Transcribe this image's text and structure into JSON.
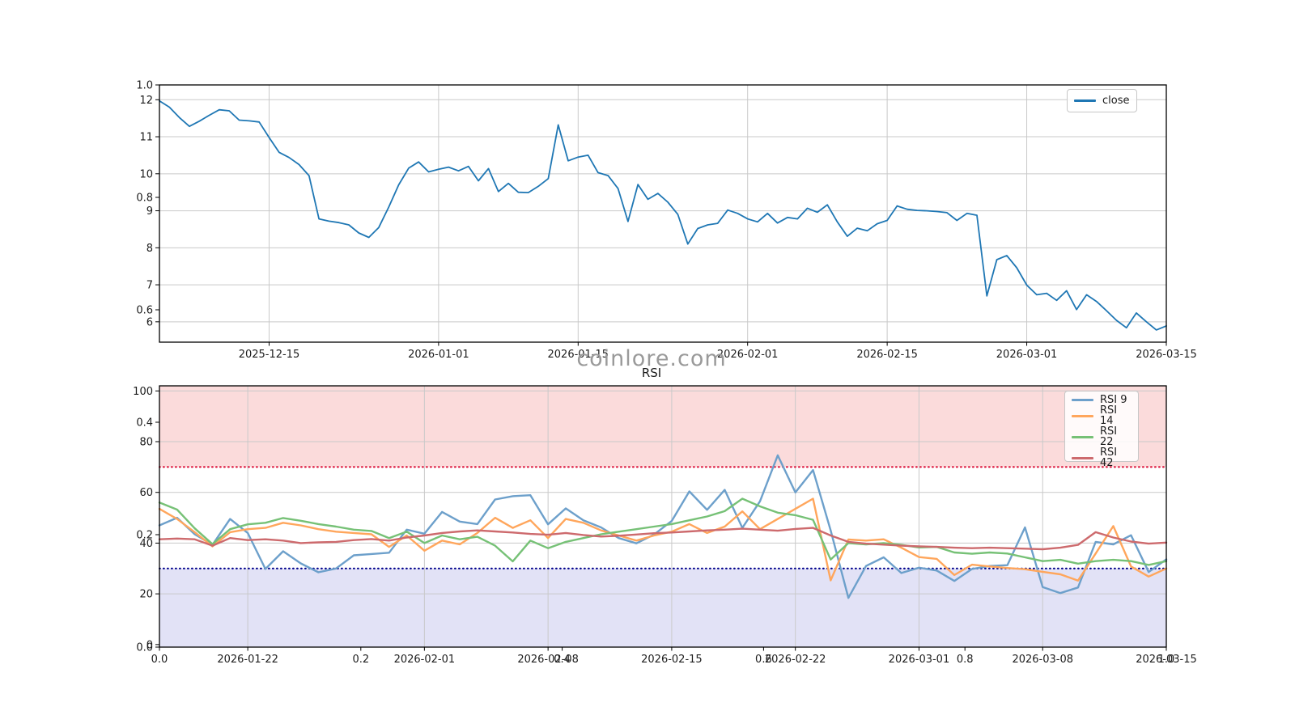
{
  "watermark": "coinlore.com",
  "overlay_ticks": {
    "x": [
      "0.0",
      "0.2",
      "0.4",
      "0.6",
      "0.8",
      "1.0"
    ],
    "y": [
      "1.0",
      "0.8",
      "0.6",
      "0.4",
      "0.2",
      "0.0"
    ]
  },
  "chart_data": [
    {
      "type": "line",
      "title": "",
      "legend": [
        "close"
      ],
      "color": "#1f77b4",
      "x_start": "2025-12-04",
      "x_end": "2026-03-15",
      "ylim": [
        5.45,
        12.4
      ],
      "grid": true,
      "legend_position": "upper right",
      "yticks": [
        "12",
        "11",
        "10",
        "9",
        "8",
        "7",
        "6"
      ],
      "xticks": [
        {
          "label": "2025-12-15",
          "index": 11
        },
        {
          "label": "2026-01-01",
          "index": 28
        },
        {
          "label": "2026-01-15",
          "index": 42
        },
        {
          "label": "2026-02-01",
          "index": 59
        },
        {
          "label": "2026-02-15",
          "index": 73
        },
        {
          "label": "2026-03-01",
          "index": 87
        },
        {
          "label": "2026-03-15",
          "index": 101
        }
      ],
      "values": [
        11.97,
        11.8,
        11.52,
        11.28,
        11.42,
        11.58,
        11.73,
        11.7,
        11.45,
        11.43,
        11.4,
        10.98,
        10.58,
        10.44,
        10.25,
        9.95,
        8.78,
        8.72,
        8.68,
        8.62,
        8.4,
        8.28,
        8.55,
        9.1,
        9.7,
        10.15,
        10.32,
        10.05,
        10.12,
        10.18,
        10.08,
        10.2,
        9.81,
        10.14,
        9.52,
        9.74,
        9.5,
        9.49,
        9.66,
        9.87,
        11.32,
        10.35,
        10.45,
        10.5,
        10.03,
        9.95,
        9.6,
        8.71,
        9.71,
        9.31,
        9.47,
        9.23,
        8.9,
        8.1,
        8.52,
        8.62,
        8.66,
        9.02,
        8.93,
        8.78,
        8.7,
        8.93,
        8.67,
        8.82,
        8.78,
        9.07,
        8.96,
        9.16,
        8.7,
        8.31,
        8.53,
        8.46,
        8.65,
        8.74,
        9.13,
        9.04,
        9.01,
        9.0,
        8.98,
        8.95,
        8.74,
        8.93,
        8.88,
        6.7,
        7.68,
        7.79,
        7.46,
        6.99,
        6.73,
        6.77,
        6.58,
        6.84,
        6.33,
        6.73,
        6.55,
        6.3,
        6.04,
        5.84,
        6.24,
        6.0,
        5.78,
        5.89
      ]
    },
    {
      "type": "line",
      "title": "RSI",
      "legend": [
        "RSI 9",
        "RSI 14",
        "RSI 22",
        "RSI 42"
      ],
      "x_start": "2026-01-17",
      "x_end": "2026-03-15",
      "ylim": [
        0,
        100
      ],
      "grid": true,
      "legend_position": "upper right",
      "yticks": [
        "100",
        "80",
        "60",
        "40",
        "20",
        "0"
      ],
      "xticks": [
        {
          "label": "2026-01-22",
          "index": 5
        },
        {
          "label": "2026-02-01",
          "index": 15
        },
        {
          "label": "2026-02-08",
          "index": 22
        },
        {
          "label": "2026-02-15",
          "index": 29
        },
        {
          "label": "2026-02-22",
          "index": 36
        },
        {
          "label": "2026-03-01",
          "index": 43
        },
        {
          "label": "2026-03-08",
          "index": 50
        },
        {
          "label": "2026-03-15",
          "index": 57
        }
      ],
      "overbought_line": {
        "value": 70,
        "color": "#dc143c"
      },
      "oversold_line": {
        "value": 30,
        "color": "#00008b"
      },
      "overbought_band": {
        "from": 70,
        "to": 100,
        "color": "#fbdbdb"
      },
      "oversold_band": {
        "from": 0,
        "to": 30,
        "color": "#e2e2f6"
      },
      "series": [
        {
          "name": "RSI 9",
          "color": "#6da0cb",
          "values": [
            47,
            50,
            43.5,
            39.3,
            49.5,
            44,
            29.8,
            36.8,
            32,
            28.5,
            30,
            35.2,
            35.7,
            36.2,
            45.3,
            43.7,
            52.3,
            48.5,
            47.5,
            57.2,
            58.5,
            58.9,
            47.4,
            53.7,
            49,
            46.2,
            42,
            39.9,
            43.4,
            48.7,
            60.4,
            53.1,
            61,
            46,
            56.5,
            74.6,
            60,
            68.8,
            45,
            18.4,
            31,
            34.4,
            28.2,
            30.3,
            29.2,
            25.1,
            29.8,
            31,
            31.3,
            46.2,
            22.7,
            20.3,
            22.5,
            40.5,
            39.5,
            43.1,
            28.6,
            33.6
          ]
        },
        {
          "name": "RSI 14",
          "color": "#ffa65c",
          "values": [
            53.5,
            49.5,
            44.3,
            38.7,
            44.3,
            45.5,
            46,
            48,
            47,
            45.5,
            44.5,
            44,
            43.5,
            38.5,
            43,
            37,
            41,
            39.5,
            44,
            50,
            46,
            49,
            42,
            49.5,
            48,
            45,
            43,
            41,
            43,
            44.5,
            47.5,
            44,
            46.5,
            52.5,
            45.5,
            49.5,
            53.5,
            57.5,
            25.3,
            41.4,
            41,
            41.5,
            38.2,
            34.5,
            33.8,
            27.4,
            31.5,
            30.8,
            30.2,
            29.7,
            28.7,
            27.7,
            25.2,
            35.9,
            46.7,
            30.8,
            26.8,
            30
          ]
        },
        {
          "name": "RSI 22",
          "color": "#76c176",
          "values": [
            56,
            53.2,
            45.8,
            39.6,
            45.5,
            47.4,
            48,
            49.9,
            48.8,
            47.5,
            46.5,
            45.3,
            44.8,
            42,
            44.5,
            40,
            43,
            41.5,
            42.5,
            39,
            32.8,
            41,
            38,
            40.5,
            42,
            43.5,
            44.5,
            45.5,
            46.5,
            47.5,
            49,
            50.5,
            52.6,
            57.5,
            54.5,
            52,
            51,
            49.2,
            33.5,
            40,
            39.5,
            40,
            39.3,
            38.3,
            38.5,
            36.3,
            35.8,
            36.3,
            35.9,
            34.4,
            32.9,
            33.4,
            31.9,
            32.9,
            33.4,
            32.9,
            31.4,
            32.9
          ]
        },
        {
          "name": "RSI 42",
          "color": "#cd6a6d",
          "values": [
            41.5,
            41.8,
            41.5,
            39,
            42,
            41.2,
            41.5,
            41,
            40,
            40.3,
            40.5,
            41.2,
            41.6,
            41,
            42.2,
            43,
            44,
            44.6,
            45,
            44.6,
            44.2,
            43.6,
            43.3,
            44,
            43.2,
            42.6,
            42.9,
            43.4,
            43.9,
            44.2,
            44.6,
            45,
            45.3,
            45.7,
            45.3,
            44.9,
            45.6,
            46,
            43,
            40.5,
            39.8,
            39.4,
            39,
            38.7,
            38.5,
            38.2,
            38,
            38.2,
            38,
            37.8,
            37.6,
            38.2,
            39.3,
            44.3,
            42.2,
            40.6,
            39.8,
            40.2
          ]
        }
      ]
    }
  ]
}
